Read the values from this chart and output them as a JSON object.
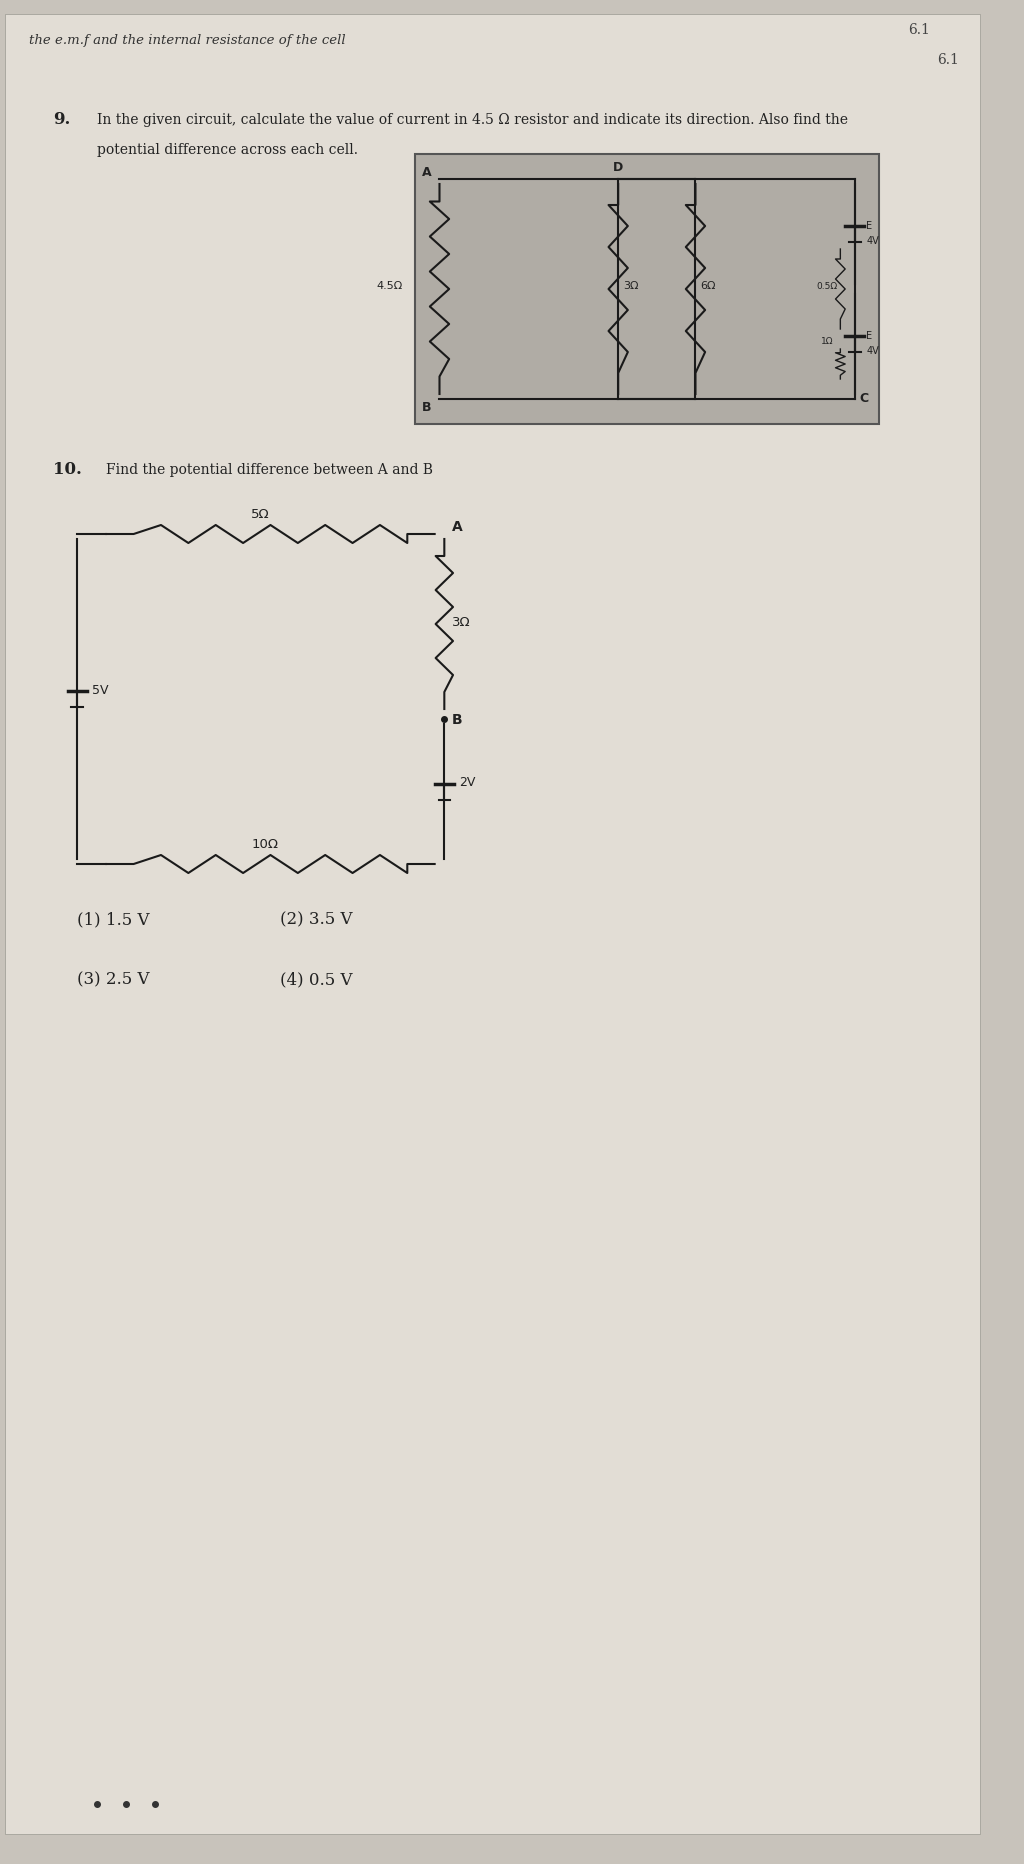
{
  "bg_color": "#c8c3bb",
  "page_bg": "#e2ddd5",
  "q9_number": "9.",
  "q9_text_line1": "In the given circuit, calculate the value of current in 4.5 Ω resistor and indicate its direction. Also find the",
  "q9_text_line2": "potential difference across each cell.",
  "q10_number": "10.",
  "q10_text": "Find the potential difference between A and B",
  "answers": [
    "(1) 1.5 V",
    "(2) 3.5 V",
    "(3) 2.5 V",
    "(4) 0.5 V"
  ],
  "section_label": "6.1",
  "top_text": "the e.m.f and the internal resistance of the cell",
  "wire_color": "#1a1a1a",
  "text_color": "#222222",
  "circuit2_bg": "#a8a5a0"
}
